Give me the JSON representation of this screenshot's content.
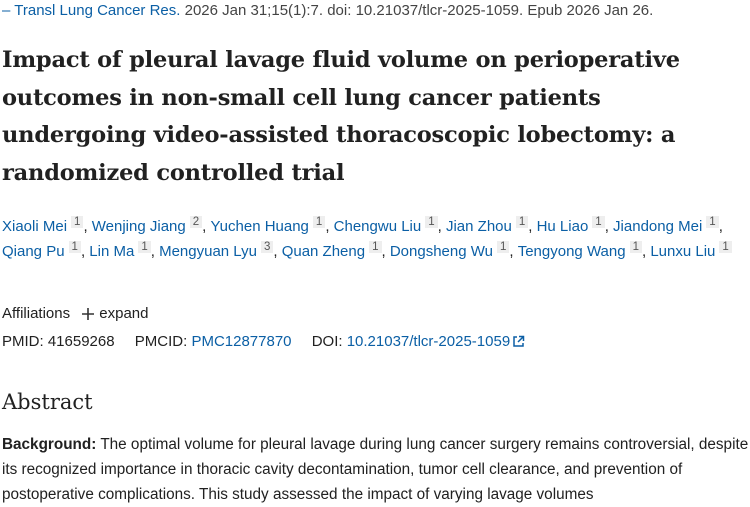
{
  "citation": {
    "journal": "Transl Lung Cancer Res.",
    "details": "2026 Jan 31;15(1):7. doi: 10.21037/tlcr-2025-1059. Epub 2026 Jan 26."
  },
  "title": "Impact of pleural lavage fluid volume on perioperative outcomes in non-small cell lung cancer patients undergoing video-assisted thoracoscopic lobectomy: a randomized controlled trial",
  "authors": [
    {
      "name": "Xiaoli Mei",
      "aff": 1
    },
    {
      "name": "Wenjing Jiang",
      "aff": 2
    },
    {
      "name": "Yuchen Huang",
      "aff": 1
    },
    {
      "name": "Chengwu Liu",
      "aff": 1
    },
    {
      "name": "Jian Zhou",
      "aff": 1
    },
    {
      "name": "Hu Liao",
      "aff": 1
    },
    {
      "name": "Jiandong Mei",
      "aff": 1
    },
    {
      "name": "Qiang Pu",
      "aff": 1
    },
    {
      "name": "Lin Ma",
      "aff": 1
    },
    {
      "name": "Mengyuan Lyu",
      "aff": 3
    },
    {
      "name": "Quan Zheng",
      "aff": 1
    },
    {
      "name": "Dongsheng Wu",
      "aff": 1
    },
    {
      "name": "Tengyong Wang",
      "aff": 1
    },
    {
      "name": "Lunxu Liu",
      "aff": 1
    }
  ],
  "affiliations": {
    "label": "Affiliations",
    "toggle": "expand"
  },
  "identifiers": {
    "pmid_label": "PMID:",
    "pmid": "41659268",
    "pmcid_label": "PMCID:",
    "pmcid": "PMC12877870",
    "doi_label": "DOI:",
    "doi": "10.21037/tlcr-2025-1059"
  },
  "abstract": {
    "heading": "Abstract",
    "sections": [
      {
        "label": "Background:",
        "text": "The optimal volume for pleural lavage during lung cancer surgery remains controversial, despite its recognized importance in thoracic cavity decontamination, tumor cell clearance, and prevention of postoperative complications. This study assessed the impact of varying lavage volumes"
      }
    ]
  }
}
